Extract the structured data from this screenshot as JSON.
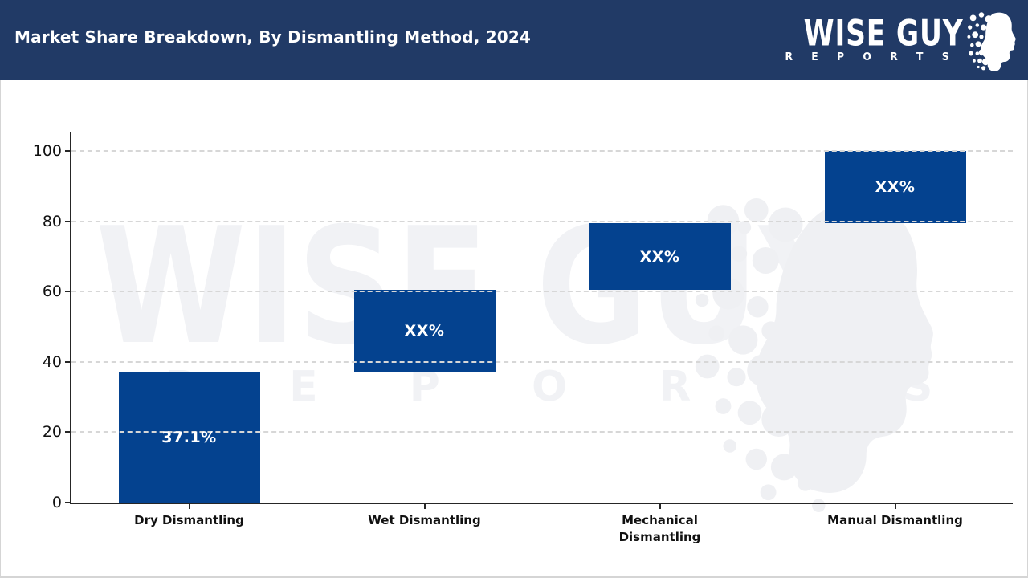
{
  "header": {
    "title": "Market Share Breakdown, By Dismantling Method, 2024",
    "logo": {
      "line1": "WISE GUY",
      "line2": "R E P O R T S",
      "icon": "dotted-face-profile-icon"
    }
  },
  "watermark": {
    "line1": "WISE GUY",
    "line2": "R E P O R T S",
    "icon": "dotted-face-profile-icon"
  },
  "colors": {
    "header_bg": "#213a66",
    "bar": "#04428f",
    "grid": "#d7d7d7",
    "axis": "#262626",
    "bar_label_text": "#ffffff",
    "watermark": "#f1f2f5",
    "frame_border": "#d5d5d5"
  },
  "chart_data": {
    "type": "bar",
    "subtype": "floating-waterfall",
    "title": "Market Share Breakdown, By Dismantling Method, 2024",
    "categories": [
      "Dry Dismantling",
      "Wet Dismantling",
      "Mechanical Dismantling",
      "Manual Dismantling"
    ],
    "tick_labels": [
      "Dry Dismantling",
      "Wet Dismantling",
      "Mechanical\nDismantling",
      "Manual Dismantling"
    ],
    "series": [
      {
        "name": "Market share (%)",
        "segments": [
          {
            "category": "Dry Dismantling",
            "base": 0,
            "top": 37.1,
            "label": "37.1%"
          },
          {
            "category": "Wet Dismantling",
            "base": 37.1,
            "top": 60.4,
            "label": "XX%"
          },
          {
            "category": "Mechanical Dismantling",
            "base": 60.4,
            "top": 79.5,
            "label": "XX%"
          },
          {
            "category": "Manual Dismantling",
            "base": 79.5,
            "top": 100,
            "label": "XX%"
          }
        ]
      }
    ],
    "xlabel": "",
    "ylabel": "",
    "ylim": [
      0,
      100
    ],
    "yticks": [
      0,
      20,
      40,
      60,
      80,
      100
    ],
    "grid": "horizontal-dashed-over-bars",
    "legend": "none"
  }
}
